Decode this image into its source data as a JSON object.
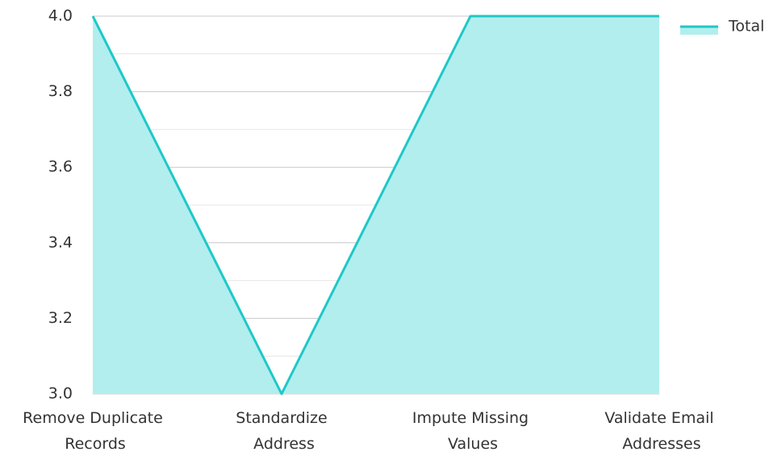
{
  "chart_data": {
    "type": "area",
    "categories": [
      "Remove Duplicate Records",
      "Standardize Address",
      "Impute Missing Values",
      "Validate Email Addresses"
    ],
    "series": [
      {
        "name": "Total",
        "color": "#1ec8c8",
        "fill": "#b2eeee",
        "values": [
          4,
          3,
          4,
          4
        ]
      }
    ],
    "ylim": [
      3,
      4
    ],
    "yticks": [
      {
        "value": 3,
        "label": "3.0"
      },
      3.2,
      3.4,
      3.6,
      3.8,
      {
        "value": 4,
        "label": "4.0"
      }
    ],
    "yminorticks": [
      3.1,
      3.3,
      3.5,
      3.7,
      3.9
    ],
    "grid": true,
    "legend": "top-right"
  }
}
